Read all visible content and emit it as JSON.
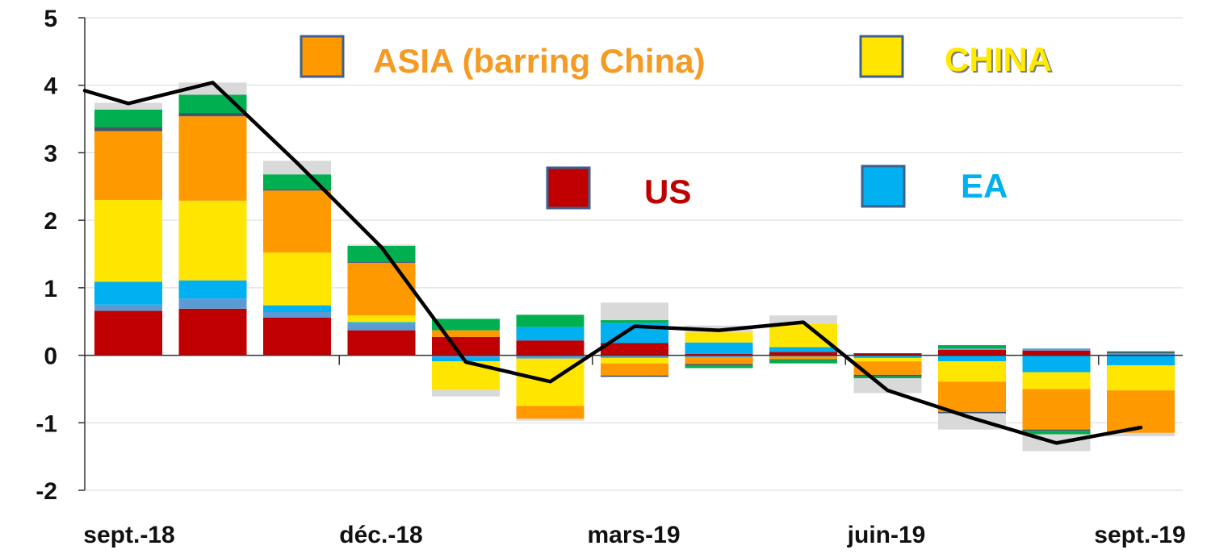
{
  "chart_data": {
    "type": "bar",
    "subtype": "stacked-bar-with-line",
    "title": "",
    "xlabel": "",
    "ylabel": "",
    "ylim": [
      -2,
      5
    ],
    "yticks": [
      "5",
      "4",
      "3",
      "2",
      "1",
      "0",
      "-1",
      "-2"
    ],
    "ytick_values": [
      5,
      4,
      3,
      2,
      1,
      0,
      -1,
      -2
    ],
    "grid": true,
    "legend_position": "inside-top",
    "x_tick_labels": [
      {
        "label": "sept.-18",
        "index": 0
      },
      {
        "label": "déc.-18",
        "index": 3
      },
      {
        "label": "mars-19",
        "index": 6
      },
      {
        "label": "juin-19",
        "index": 9
      },
      {
        "label": "sept.-19",
        "index": 12
      }
    ],
    "categories": [
      "2018-09",
      "2018-10",
      "2018-11",
      "2018-12",
      "2019-01",
      "2019-02",
      "2019-03",
      "2019-04",
      "2019-05",
      "2019-06",
      "2019-07",
      "2019-08",
      "2019-09"
    ],
    "series": [
      {
        "name": "US",
        "color": "#c00000",
        "values": [
          0.66,
          0.69,
          0.56,
          0.37,
          0.27,
          0.22,
          0.18,
          0.02,
          0.05,
          0.03,
          0.08,
          0.07,
          0.0
        ]
      },
      {
        "color": "#5b9bd5",
        "values": [
          0.09,
          0.15,
          0.08,
          0.1,
          -0.03,
          -0.05,
          -0.04,
          -0.03,
          -0.02,
          0.0,
          0.02,
          0.03,
          0.03
        ]
      },
      {
        "name": "EA",
        "color": "#00b0f0",
        "values": [
          0.34,
          0.27,
          0.1,
          0.02,
          -0.06,
          0.2,
          0.3,
          0.17,
          0.07,
          -0.04,
          -0.09,
          -0.25,
          -0.15
        ]
      },
      {
        "name": "CHINA",
        "color": "#ffe600",
        "values": [
          1.21,
          1.18,
          0.78,
          0.1,
          -0.42,
          -0.7,
          -0.08,
          0.15,
          0.35,
          -0.05,
          -0.3,
          -0.25,
          -0.37
        ]
      },
      {
        "name": "ASIA (barring China)",
        "color": "#ff9900",
        "values": [
          1.02,
          1.25,
          0.92,
          0.78,
          0.1,
          -0.19,
          -0.18,
          -0.1,
          -0.04,
          -0.2,
          -0.45,
          -0.6,
          -0.63
        ]
      },
      {
        "color": "#44546a",
        "values": [
          0.06,
          0.05,
          0.02,
          0.02,
          0.0,
          0.0,
          -0.02,
          -0.02,
          -0.01,
          -0.02,
          -0.02,
          -0.02,
          0.02
        ]
      },
      {
        "color": "#00b050",
        "values": [
          0.26,
          0.27,
          0.22,
          0.23,
          0.17,
          0.18,
          0.04,
          -0.04,
          -0.05,
          -0.03,
          0.05,
          -0.05,
          0.01
        ]
      },
      {
        "color": "#d9d9d9",
        "values": [
          0.1,
          0.18,
          0.2,
          0.02,
          -0.1,
          -0.03,
          0.26,
          0.1,
          0.12,
          -0.22,
          -0.24,
          -0.25,
          -0.05
        ]
      }
    ],
    "line_series": {
      "color": "#000000",
      "values": [
        3.92,
        3.73,
        4.04,
        2.85,
        1.6,
        -0.1,
        -0.39,
        0.43,
        0.37,
        0.49,
        -0.52,
        -0.93,
        -1.3,
        -1.07
      ]
    },
    "line_x_positions": [
      -0.5,
      0,
      1,
      2,
      3,
      4,
      5,
      6,
      7,
      8,
      9,
      10,
      11,
      12
    ]
  }
}
